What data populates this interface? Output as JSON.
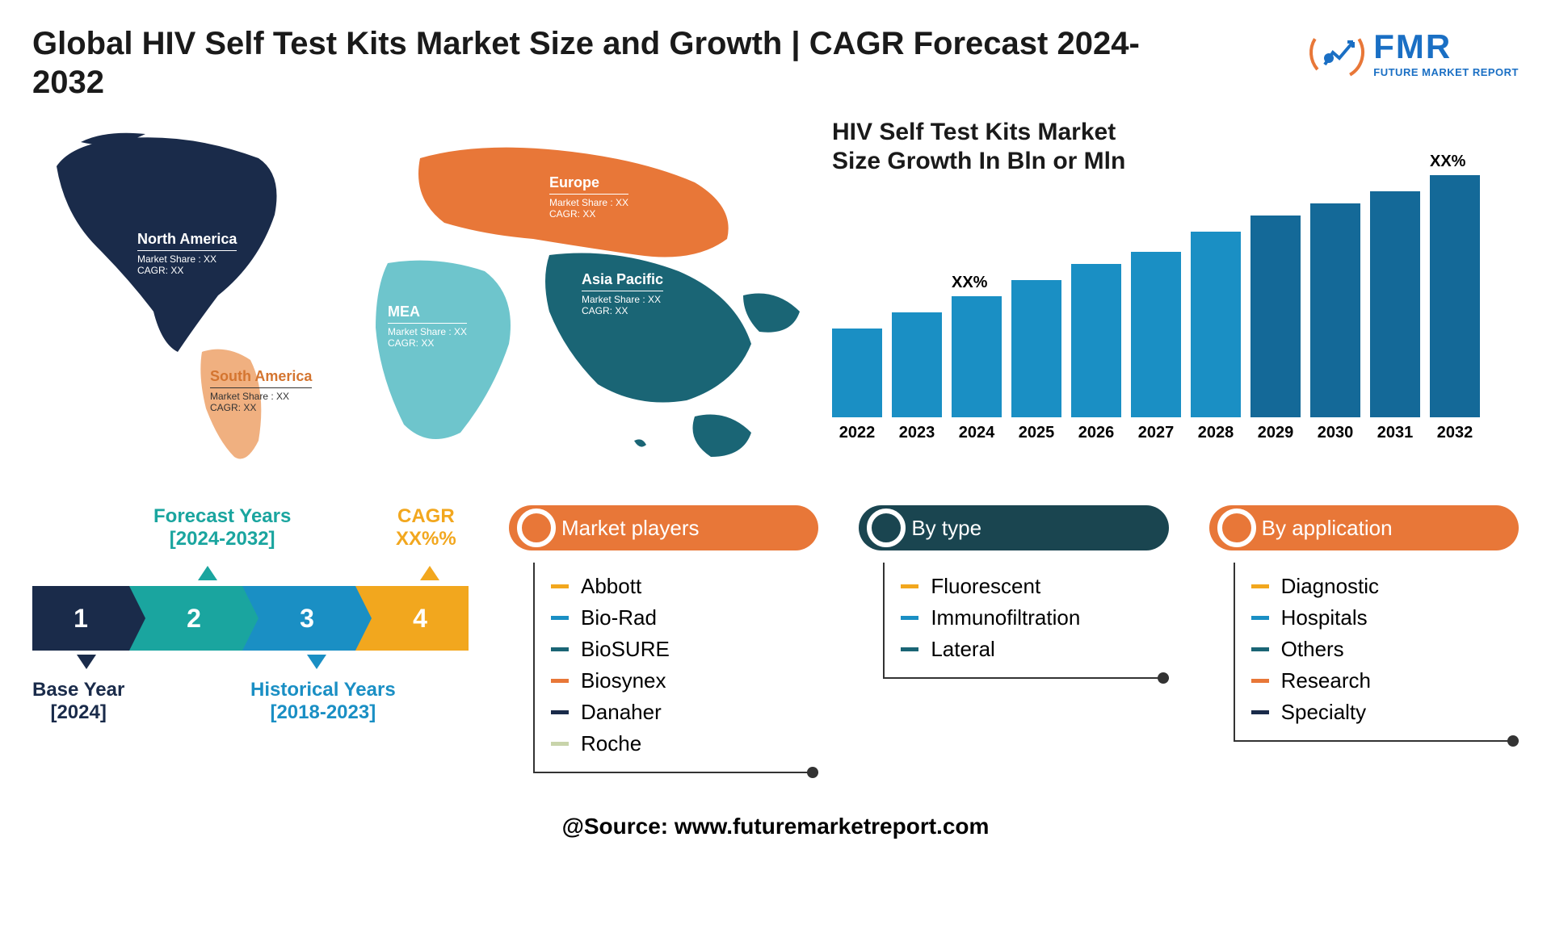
{
  "title": "Global HIV Self Test Kits Market Size and Growth | CAGR Forecast 2024-2032",
  "logo": {
    "fmr": "FMR",
    "sub": "FUTURE MARKET REPORT"
  },
  "map": {
    "regions": [
      {
        "name": "North America",
        "share": "Market Share : XX",
        "cagr": "CAGR: XX",
        "color": "#1a2b4a"
      },
      {
        "name": "South America",
        "share": "Market Share : XX",
        "cagr": "CAGR: XX",
        "color": "#f0b080"
      },
      {
        "name": "Europe",
        "share": "Market Share : XX",
        "cagr": "CAGR: XX",
        "color": "#e87738"
      },
      {
        "name": "MEA",
        "share": "Market Share : XX",
        "cagr": "CAGR: XX",
        "color": "#6ec5cc"
      },
      {
        "name": "Asia Pacific",
        "share": "Market Share : XX",
        "cagr": "CAGR: XX",
        "color": "#1a6575"
      }
    ],
    "colors": {
      "na": "#1a2b4a",
      "sa": "#f0b080",
      "eu": "#e87738",
      "mea": "#6ec5cc",
      "ap": "#1a6575"
    }
  },
  "chart": {
    "type": "bar",
    "title": "HIV Self Test Kits Market Size Growth In Bln or Mln",
    "years": [
      "2022",
      "2023",
      "2024",
      "2025",
      "2026",
      "2027",
      "2028",
      "2029",
      "2030",
      "2031",
      "2032"
    ],
    "values": [
      110,
      130,
      150,
      170,
      190,
      205,
      230,
      250,
      265,
      280,
      300
    ],
    "bar_color": "#1a8fc4",
    "bar_color_alt": "#146998",
    "annotations": [
      {
        "index": 2,
        "text": "XX%"
      },
      {
        "index": 10,
        "text": "XX%"
      }
    ],
    "label_fontsize": 20
  },
  "timeline": {
    "forecast": {
      "label": "Forecast Years",
      "range": "[2024-2032]",
      "color": "#1aa59f"
    },
    "cagr": {
      "label": "CAGR",
      "value": "XX%%",
      "color": "#f2a71e"
    },
    "base": {
      "label": "Base Year",
      "range": "[2024]",
      "color": "#1a2b4a"
    },
    "historical": {
      "label": "Historical Years",
      "range": "[2018-2023]",
      "color": "#1a8fc4"
    },
    "steps": [
      {
        "num": "1",
        "color": "#1a2b4a"
      },
      {
        "num": "2",
        "color": "#1aa59f"
      },
      {
        "num": "3",
        "color": "#1a8fc4"
      },
      {
        "num": "4",
        "color": "#f2a71e"
      }
    ]
  },
  "info": {
    "players": {
      "header": "Market players",
      "header_color": "#e87738",
      "items": [
        {
          "text": "Abbott",
          "color": "#f2a71e"
        },
        {
          "text": "Bio-Rad",
          "color": "#1a8fc4"
        },
        {
          "text": "BioSURE",
          "color": "#1a6575"
        },
        {
          "text": "Biosynex",
          "color": "#e87738"
        },
        {
          "text": "Danaher",
          "color": "#1a2b4a"
        },
        {
          "text": "Roche",
          "color": "#c8d4aa"
        }
      ]
    },
    "type": {
      "header": "By type",
      "header_color": "#1a4550",
      "items": [
        {
          "text": "Fluorescent",
          "color": "#f2a71e"
        },
        {
          "text": "Immunofiltration",
          "color": "#1a8fc4"
        },
        {
          "text": "Lateral",
          "color": "#1a6575"
        }
      ]
    },
    "application": {
      "header": "By application",
      "header_color": "#e87738",
      "items": [
        {
          "text": "Diagnostic",
          "color": "#f2a71e"
        },
        {
          "text": "Hospitals",
          "color": "#1a8fc4"
        },
        {
          "text": "Others",
          "color": "#1a6575"
        },
        {
          "text": "Research",
          "color": "#e87738"
        },
        {
          "text": "Specialty",
          "color": "#1a2b4a"
        }
      ]
    }
  },
  "source": "@Source: www.futuremarketreport.com"
}
